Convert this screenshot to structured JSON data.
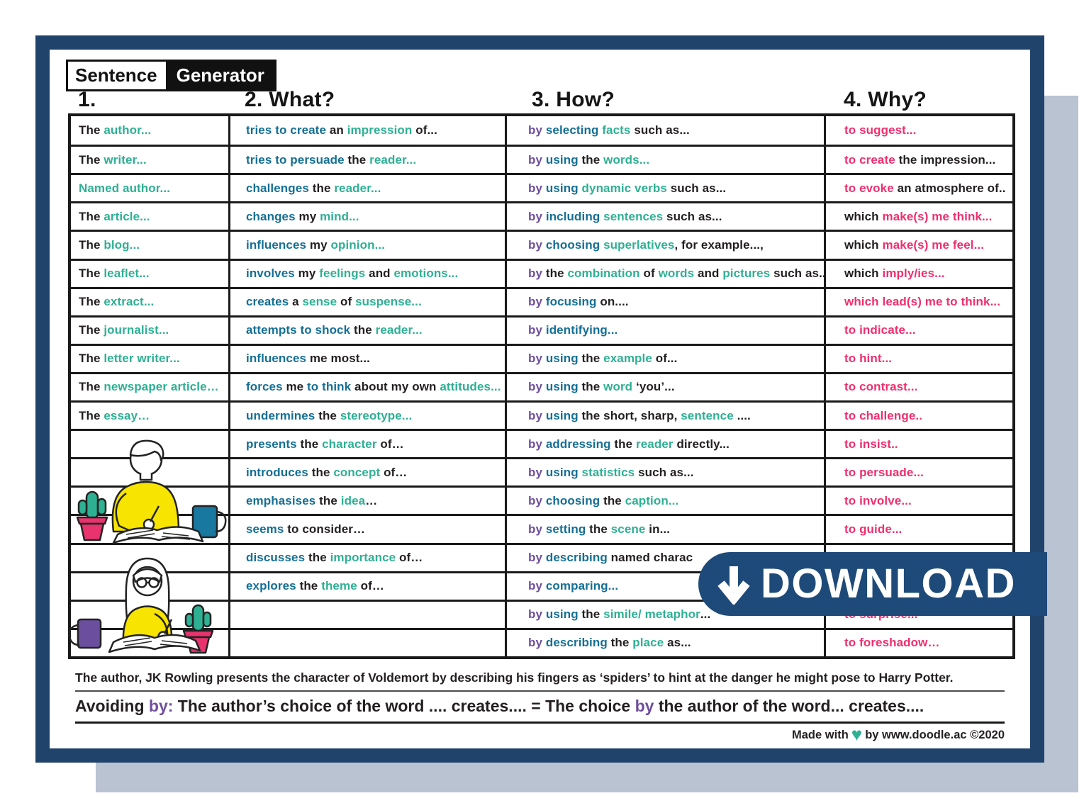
{
  "title": {
    "word1": "Sentence",
    "word2": "Generator"
  },
  "column_headers": [
    "1.",
    "2. What?",
    "3. How?",
    "4. Why?"
  ],
  "colors": {
    "frame_navy": "#20436b",
    "banner_navy": "#1e4a79",
    "shadow_gray": "#b9c3d2",
    "table_border": "#1a1a1a",
    "accent_yellow": "#f7e400",
    "accent_pot_pink": "#e8336e"
  },
  "segment_palette": {
    "k": "#231f20",
    "b": "#156f94",
    "g": "#2eb093",
    "p": "#6f4f9c",
    "pk": "#ef2f6e"
  },
  "rows": [
    {
      "c1": [
        {
          "t": "The ",
          "c": "k"
        },
        {
          "t": "author...",
          "c": "g"
        }
      ],
      "c2": [
        {
          "t": "tries to create ",
          "c": "b"
        },
        {
          "t": "an ",
          "c": "k"
        },
        {
          "t": "impression ",
          "c": "g"
        },
        {
          "t": "of...",
          "c": "k"
        }
      ],
      "c3": [
        {
          "t": "by ",
          "c": "p"
        },
        {
          "t": "selecting ",
          "c": "b"
        },
        {
          "t": "facts ",
          "c": "g"
        },
        {
          "t": "such as...",
          "c": "k"
        }
      ],
      "c4": [
        {
          "t": "to suggest...",
          "c": "pk"
        }
      ]
    },
    {
      "c1": [
        {
          "t": "The ",
          "c": "k"
        },
        {
          "t": "writer...",
          "c": "g"
        }
      ],
      "c2": [
        {
          "t": "tries to persuade ",
          "c": "b"
        },
        {
          "t": "the ",
          "c": "k"
        },
        {
          "t": "reader...",
          "c": "g"
        }
      ],
      "c3": [
        {
          "t": "by ",
          "c": "p"
        },
        {
          "t": "using ",
          "c": "b"
        },
        {
          "t": "the ",
          "c": "k"
        },
        {
          "t": "words...",
          "c": "g"
        }
      ],
      "c4": [
        {
          "t": "to create ",
          "c": "pk"
        },
        {
          "t": "the impression...",
          "c": "k"
        }
      ]
    },
    {
      "c1": [
        {
          "t": "Named author...",
          "c": "g"
        }
      ],
      "c2": [
        {
          "t": "challenges ",
          "c": "b"
        },
        {
          "t": "the ",
          "c": "k"
        },
        {
          "t": "reader...",
          "c": "g"
        }
      ],
      "c3": [
        {
          "t": "by ",
          "c": "p"
        },
        {
          "t": "using ",
          "c": "b"
        },
        {
          "t": "dynamic verbs ",
          "c": "g"
        },
        {
          "t": "such as...",
          "c": "k"
        }
      ],
      "c4": [
        {
          "t": "to evoke ",
          "c": "pk"
        },
        {
          "t": "an atmosphere of..",
          "c": "k"
        }
      ]
    },
    {
      "c1": [
        {
          "t": "The ",
          "c": "k"
        },
        {
          "t": "article...",
          "c": "g"
        }
      ],
      "c2": [
        {
          "t": "changes ",
          "c": "b"
        },
        {
          "t": "my ",
          "c": "k"
        },
        {
          "t": "mind...",
          "c": "g"
        }
      ],
      "c3": [
        {
          "t": "by ",
          "c": "p"
        },
        {
          "t": "including ",
          "c": "b"
        },
        {
          "t": "sentences ",
          "c": "g"
        },
        {
          "t": "such as...",
          "c": "k"
        }
      ],
      "c4": [
        {
          "t": "which ",
          "c": "k"
        },
        {
          "t": "make(s) me think...",
          "c": "pk"
        }
      ]
    },
    {
      "c1": [
        {
          "t": "The ",
          "c": "k"
        },
        {
          "t": "blog...",
          "c": "g"
        }
      ],
      "c2": [
        {
          "t": "influences ",
          "c": "b"
        },
        {
          "t": "my ",
          "c": "k"
        },
        {
          "t": "opinion...",
          "c": "g"
        }
      ],
      "c3": [
        {
          "t": "by ",
          "c": "p"
        },
        {
          "t": "choosing ",
          "c": "b"
        },
        {
          "t": "superlatives",
          "c": "g"
        },
        {
          "t": ", for example...,",
          "c": "k"
        }
      ],
      "c4": [
        {
          "t": "which ",
          "c": "k"
        },
        {
          "t": "make(s) me feel...",
          "c": "pk"
        }
      ]
    },
    {
      "c1": [
        {
          "t": "The ",
          "c": "k"
        },
        {
          "t": "leaflet...",
          "c": "g"
        }
      ],
      "c2": [
        {
          "t": "involves ",
          "c": "b"
        },
        {
          "t": "my ",
          "c": "k"
        },
        {
          "t": "feelings ",
          "c": "g"
        },
        {
          "t": "and ",
          "c": "k"
        },
        {
          "t": "emotions...",
          "c": "g"
        }
      ],
      "c3": [
        {
          "t": "by ",
          "c": "p"
        },
        {
          "t": "the ",
          "c": "k"
        },
        {
          "t": "combination ",
          "c": "g"
        },
        {
          "t": "of ",
          "c": "k"
        },
        {
          "t": "words ",
          "c": "g"
        },
        {
          "t": "and ",
          "c": "k"
        },
        {
          "t": "pictures ",
          "c": "g"
        },
        {
          "t": "such as...",
          "c": "k"
        }
      ],
      "c4": [
        {
          "t": "which ",
          "c": "k"
        },
        {
          "t": "imply/ies...",
          "c": "pk"
        }
      ]
    },
    {
      "c1": [
        {
          "t": "The ",
          "c": "k"
        },
        {
          "t": "extract...",
          "c": "g"
        }
      ],
      "c2": [
        {
          "t": "creates ",
          "c": "b"
        },
        {
          "t": "a ",
          "c": "k"
        },
        {
          "t": "sense ",
          "c": "g"
        },
        {
          "t": "of ",
          "c": "k"
        },
        {
          "t": "suspense...",
          "c": "g"
        }
      ],
      "c3": [
        {
          "t": "by ",
          "c": "p"
        },
        {
          "t": "focusing ",
          "c": "b"
        },
        {
          "t": "on....",
          "c": "k"
        }
      ],
      "c4": [
        {
          "t": "which lead(s) me to think...",
          "c": "pk"
        }
      ]
    },
    {
      "c1": [
        {
          "t": "The ",
          "c": "k"
        },
        {
          "t": "journalist...",
          "c": "g"
        }
      ],
      "c2": [
        {
          "t": "attempts to shock ",
          "c": "b"
        },
        {
          "t": "the ",
          "c": "k"
        },
        {
          "t": "reader...",
          "c": "g"
        }
      ],
      "c3": [
        {
          "t": "by ",
          "c": "p"
        },
        {
          "t": "identifying...",
          "c": "b"
        }
      ],
      "c4": [
        {
          "t": "to indicate...",
          "c": "pk"
        }
      ]
    },
    {
      "c1": [
        {
          "t": "The ",
          "c": "k"
        },
        {
          "t": "letter writer...",
          "c": "g"
        }
      ],
      "c2": [
        {
          "t": "influences ",
          "c": "b"
        },
        {
          "t": "me most...",
          "c": "k"
        }
      ],
      "c3": [
        {
          "t": "by ",
          "c": "p"
        },
        {
          "t": "using ",
          "c": "b"
        },
        {
          "t": "the ",
          "c": "k"
        },
        {
          "t": "example ",
          "c": "g"
        },
        {
          "t": "of...",
          "c": "k"
        }
      ],
      "c4": [
        {
          "t": "to hint...",
          "c": "pk"
        }
      ]
    },
    {
      "c1": [
        {
          "t": "The ",
          "c": "k"
        },
        {
          "t": "newspaper article…",
          "c": "g"
        }
      ],
      "c2": [
        {
          "t": "forces ",
          "c": "b"
        },
        {
          "t": "me ",
          "c": "k"
        },
        {
          "t": "to think ",
          "c": "b"
        },
        {
          "t": "about my own ",
          "c": "k"
        },
        {
          "t": "attitudes...",
          "c": "g"
        }
      ],
      "c3": [
        {
          "t": "by ",
          "c": "p"
        },
        {
          "t": "using ",
          "c": "b"
        },
        {
          "t": "the ",
          "c": "k"
        },
        {
          "t": "word ",
          "c": "g"
        },
        {
          "t": "‘you’...",
          "c": "k"
        }
      ],
      "c4": [
        {
          "t": "to contrast...",
          "c": "pk"
        }
      ]
    },
    {
      "c1": [
        {
          "t": "The ",
          "c": "k"
        },
        {
          "t": "essay…",
          "c": "g"
        }
      ],
      "c2": [
        {
          "t": "undermines ",
          "c": "b"
        },
        {
          "t": "the ",
          "c": "k"
        },
        {
          "t": "stereotype...",
          "c": "g"
        }
      ],
      "c3": [
        {
          "t": "by ",
          "c": "p"
        },
        {
          "t": "using ",
          "c": "b"
        },
        {
          "t": "the short, sharp, ",
          "c": "k"
        },
        {
          "t": "sentence ",
          "c": "g"
        },
        {
          "t": "....",
          "c": "k"
        }
      ],
      "c4": [
        {
          "t": "to challenge..",
          "c": "pk"
        }
      ]
    },
    {
      "c1": [],
      "c2": [
        {
          "t": "presents ",
          "c": "b"
        },
        {
          "t": "the ",
          "c": "k"
        },
        {
          "t": "character ",
          "c": "g"
        },
        {
          "t": "of…",
          "c": "k"
        }
      ],
      "c3": [
        {
          "t": "by ",
          "c": "p"
        },
        {
          "t": "addressing ",
          "c": "b"
        },
        {
          "t": "the ",
          "c": "k"
        },
        {
          "t": "reader ",
          "c": "g"
        },
        {
          "t": "directly...",
          "c": "k"
        }
      ],
      "c4": [
        {
          "t": "to insist..",
          "c": "pk"
        }
      ]
    },
    {
      "c1": [],
      "c2": [
        {
          "t": "introduces ",
          "c": "b"
        },
        {
          "t": "the ",
          "c": "k"
        },
        {
          "t": "concept ",
          "c": "g"
        },
        {
          "t": "of…",
          "c": "k"
        }
      ],
      "c3": [
        {
          "t": "by ",
          "c": "p"
        },
        {
          "t": "using ",
          "c": "b"
        },
        {
          "t": "statistics ",
          "c": "g"
        },
        {
          "t": "such as...",
          "c": "k"
        }
      ],
      "c4": [
        {
          "t": "to persuade...",
          "c": "pk"
        }
      ]
    },
    {
      "c1": [],
      "c2": [
        {
          "t": "emphasises ",
          "c": "b"
        },
        {
          "t": "the ",
          "c": "k"
        },
        {
          "t": "idea",
          "c": "g"
        },
        {
          "t": "…",
          "c": "k"
        }
      ],
      "c3": [
        {
          "t": "by ",
          "c": "p"
        },
        {
          "t": "choosing ",
          "c": "b"
        },
        {
          "t": "the ",
          "c": "k"
        },
        {
          "t": "caption...",
          "c": "g"
        }
      ],
      "c4": [
        {
          "t": "to involve...",
          "c": "pk"
        }
      ]
    },
    {
      "c1": [],
      "c2": [
        {
          "t": "seems ",
          "c": "b"
        },
        {
          "t": "to consider…",
          "c": "k"
        }
      ],
      "c3": [
        {
          "t": "by ",
          "c": "p"
        },
        {
          "t": "setting ",
          "c": "b"
        },
        {
          "t": "the ",
          "c": "k"
        },
        {
          "t": "scene ",
          "c": "g"
        },
        {
          "t": "in...",
          "c": "k"
        }
      ],
      "c4": [
        {
          "t": "to guide...",
          "c": "pk"
        }
      ]
    },
    {
      "c1": [],
      "c2": [
        {
          "t": "discusses ",
          "c": "b"
        },
        {
          "t": "the ",
          "c": "k"
        },
        {
          "t": "importance ",
          "c": "g"
        },
        {
          "t": "of…",
          "c": "k"
        }
      ],
      "c3": [
        {
          "t": "by ",
          "c": "p"
        },
        {
          "t": "describing ",
          "c": "b"
        },
        {
          "t": "named charac",
          "c": "k"
        }
      ],
      "c4": []
    },
    {
      "c1": [],
      "c2": [
        {
          "t": "explores ",
          "c": "b"
        },
        {
          "t": "the ",
          "c": "k"
        },
        {
          "t": "theme ",
          "c": "g"
        },
        {
          "t": "of…",
          "c": "k"
        }
      ],
      "c3": [
        {
          "t": "by ",
          "c": "p"
        },
        {
          "t": "comparing...",
          "c": "b"
        }
      ],
      "c4": []
    },
    {
      "c1": [],
      "c2": [],
      "c3": [
        {
          "t": "by ",
          "c": "p"
        },
        {
          "t": "using ",
          "c": "b"
        },
        {
          "t": "the ",
          "c": "k"
        },
        {
          "t": "simile/ metaphor",
          "c": "g"
        },
        {
          "t": "...",
          "c": "k"
        }
      ],
      "c4": [
        {
          "t": "to surprise...",
          "c": "pk"
        }
      ]
    },
    {
      "c1": [],
      "c2": [],
      "c3": [
        {
          "t": "by ",
          "c": "p"
        },
        {
          "t": "describing ",
          "c": "b"
        },
        {
          "t": "the ",
          "c": "k"
        },
        {
          "t": "place ",
          "c": "g"
        },
        {
          "t": "as...",
          "c": "k"
        }
      ],
      "c4": [
        {
          "t": "to foreshadow…",
          "c": "pk"
        }
      ]
    }
  ],
  "example_sentence": "The author, JK Rowling presents the character of Voldemort by describing his fingers as ‘spiders’ to hint at the danger he might pose to Harry Potter.",
  "avoiding_line": [
    {
      "t": "Avoiding ",
      "c": "k"
    },
    {
      "t": "by:",
      "c": "p"
    },
    {
      "t": " The author’s choice of the word .... creates....  = The choice ",
      "c": "k"
    },
    {
      "t": "by",
      "c": "p"
    },
    {
      "t": " the author of the word... creates....",
      "c": "k"
    }
  ],
  "footer": {
    "made_with": "Made with",
    "heart": "♥",
    "credit": "by www.doodle.ac ©2020"
  },
  "download_label": "DOWNLOAD",
  "illustrations": [
    "man-writing-in-book",
    "woman-reading-book"
  ]
}
